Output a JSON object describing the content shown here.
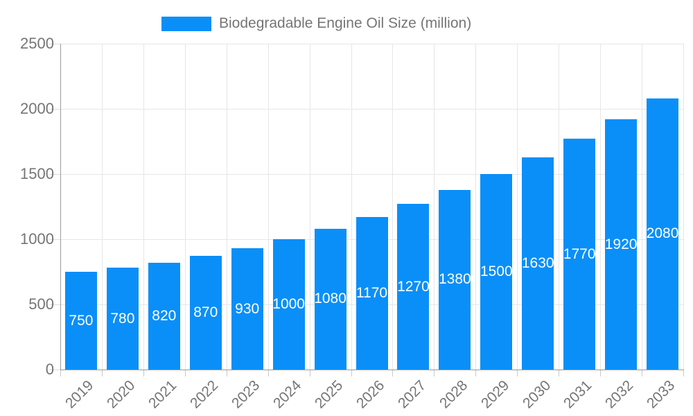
{
  "legend": {
    "label": "Biodegradable Engine Oil Size (million)"
  },
  "chart_data": {
    "type": "bar",
    "title": "Biodegradable Engine Oil Size (million)",
    "categories": [
      "2019",
      "2020",
      "2021",
      "2022",
      "2023",
      "2024",
      "2025",
      "2026",
      "2027",
      "2028",
      "2029",
      "2030",
      "2031",
      "2032",
      "2033"
    ],
    "values": [
      750,
      780,
      820,
      870,
      930,
      1000,
      1080,
      1170,
      1270,
      1380,
      1500,
      1630,
      1770,
      1920,
      2080
    ],
    "xlabel": "",
    "ylabel": "",
    "ylim": [
      0,
      2500
    ],
    "yticks": [
      0,
      500,
      1000,
      1500,
      2000,
      2500
    ],
    "grid": "both",
    "legend_position": "top-center",
    "value_label_position": "inside-middle"
  },
  "colors": {
    "bar": "#0a8ff8",
    "axis": "#9a9a9a",
    "grid": "#e6e6e6",
    "tick": "#c9c9c9",
    "text": "#757575",
    "value_label": "#ffffff",
    "background": "#ffffff"
  }
}
